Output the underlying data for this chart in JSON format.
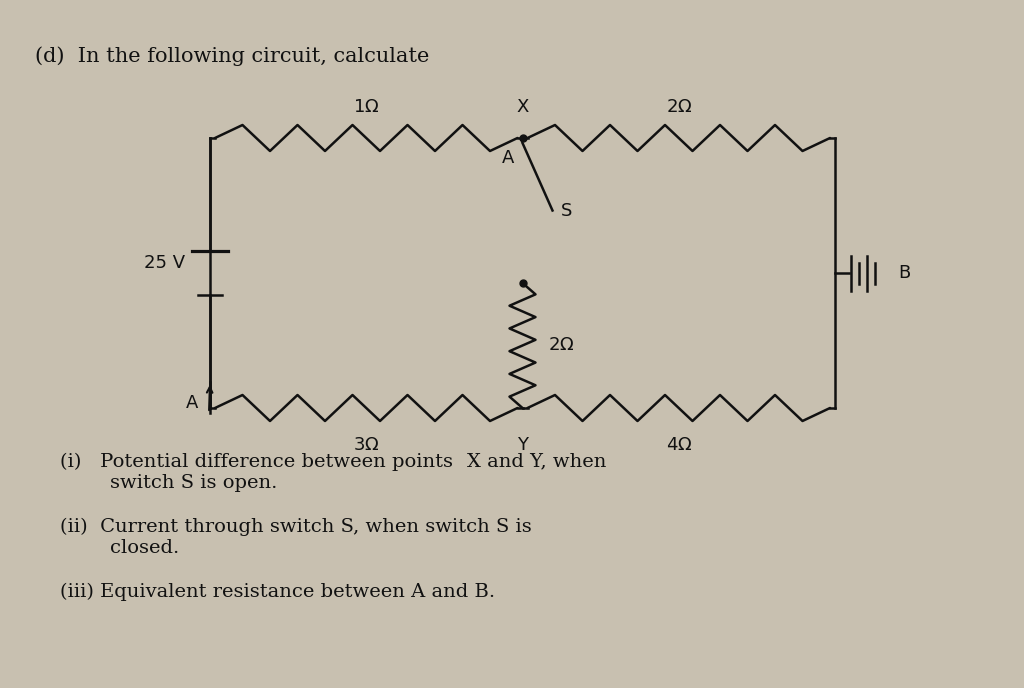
{
  "bg_color": "#c8c0b0",
  "panel_color": "#d4cdc0",
  "title": "(d)  In the following circuit, calculate",
  "title_fontsize": 15,
  "text_color": "#111111",
  "items": [
    "(i)   Potential difference between points   X and Y, when\n        switch S is open.",
    "(ii)  Current through switch S, when switch S is\n        closed.",
    "(iii) Equivalent resistance between A and B."
  ],
  "item_fontsize": 14,
  "fig_width": 10.24,
  "fig_height": 6.88
}
